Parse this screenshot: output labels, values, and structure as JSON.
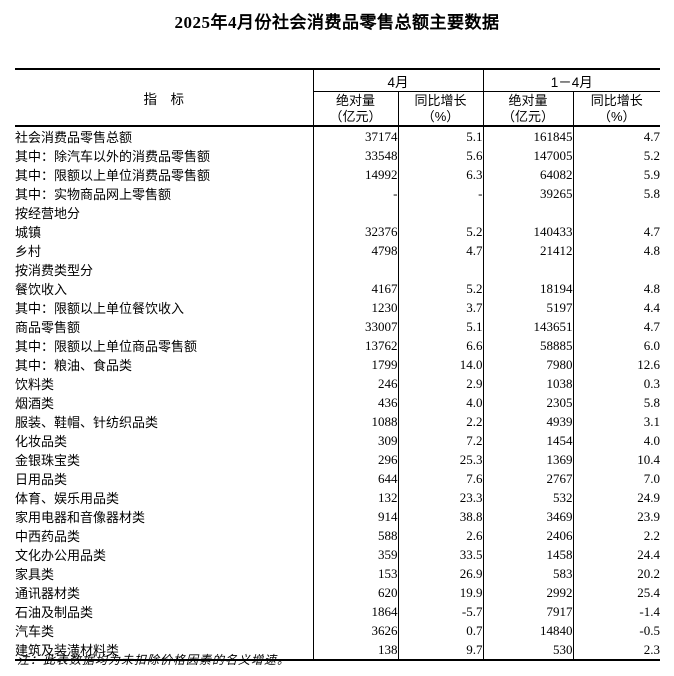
{
  "title": "2025年4月份社会消费品零售总额主要数据",
  "table": {
    "header": {
      "indicator": "指　标",
      "group_april": "4月",
      "group_jan_apr": "1－4月",
      "absolute_label": "绝对量",
      "absolute_unit": "（亿元）",
      "growth_label": "同比增长",
      "growth_unit": "（%）"
    },
    "rows": [
      {
        "indicator": "社会消费品零售总额",
        "indent": 0,
        "apr_abs": "37174",
        "apr_yoy": "5.1",
        "cum_abs": "161845",
        "cum_yoy": "4.7"
      },
      {
        "indicator": "其中：除汽车以外的消费品零售额",
        "indent": 1,
        "apr_abs": "33548",
        "apr_yoy": "5.6",
        "cum_abs": "147005",
        "cum_yoy": "5.2"
      },
      {
        "indicator": "其中：限额以上单位消费品零售额",
        "indent": 1,
        "apr_abs": "14992",
        "apr_yoy": "6.3",
        "cum_abs": "64082",
        "cum_yoy": "5.9"
      },
      {
        "indicator": "其中：实物商品网上零售额",
        "indent": 1,
        "apr_abs": "-",
        "apr_yoy": "-",
        "cum_abs": "39265",
        "cum_yoy": "5.8"
      },
      {
        "indicator": "按经营地分",
        "indent": 0,
        "apr_abs": "",
        "apr_yoy": "",
        "cum_abs": "",
        "cum_yoy": ""
      },
      {
        "indicator": "城镇",
        "indent": 1,
        "apr_abs": "32376",
        "apr_yoy": "5.2",
        "cum_abs": "140433",
        "cum_yoy": "4.7"
      },
      {
        "indicator": "乡村",
        "indent": 1,
        "apr_abs": "4798",
        "apr_yoy": "4.7",
        "cum_abs": "21412",
        "cum_yoy": "4.8"
      },
      {
        "indicator": "按消费类型分",
        "indent": 0,
        "apr_abs": "",
        "apr_yoy": "",
        "cum_abs": "",
        "cum_yoy": ""
      },
      {
        "indicator": "餐饮收入",
        "indent": 1,
        "apr_abs": "4167",
        "apr_yoy": "5.2",
        "cum_abs": "18194",
        "cum_yoy": "4.8"
      },
      {
        "indicator": "其中：限额以上单位餐饮收入",
        "indent": 2,
        "apr_abs": "1230",
        "apr_yoy": "3.7",
        "cum_abs": "5197",
        "cum_yoy": "4.4"
      },
      {
        "indicator": "商品零售额",
        "indent": 1,
        "apr_abs": "33007",
        "apr_yoy": "5.1",
        "cum_abs": "143651",
        "cum_yoy": "4.7"
      },
      {
        "indicator": "其中：限额以上单位商品零售额",
        "indent": 2,
        "apr_abs": "13762",
        "apr_yoy": "6.6",
        "cum_abs": "58885",
        "cum_yoy": "6.0"
      },
      {
        "indicator": "其中：粮油、食品类",
        "indent": 3,
        "apr_abs": "1799",
        "apr_yoy": "14.0",
        "cum_abs": "7980",
        "cum_yoy": "12.6"
      },
      {
        "indicator": "饮料类",
        "indent": 4,
        "apr_abs": "246",
        "apr_yoy": "2.9",
        "cum_abs": "1038",
        "cum_yoy": "0.3"
      },
      {
        "indicator": "烟酒类",
        "indent": 4,
        "apr_abs": "436",
        "apr_yoy": "4.0",
        "cum_abs": "2305",
        "cum_yoy": "5.8"
      },
      {
        "indicator": "服装、鞋帽、针纺织品类",
        "indent": 4,
        "apr_abs": "1088",
        "apr_yoy": "2.2",
        "cum_abs": "4939",
        "cum_yoy": "3.1"
      },
      {
        "indicator": "化妆品类",
        "indent": 4,
        "apr_abs": "309",
        "apr_yoy": "7.2",
        "cum_abs": "1454",
        "cum_yoy": "4.0"
      },
      {
        "indicator": "金银珠宝类",
        "indent": 4,
        "apr_abs": "296",
        "apr_yoy": "25.3",
        "cum_abs": "1369",
        "cum_yoy": "10.4"
      },
      {
        "indicator": "日用品类",
        "indent": 4,
        "apr_abs": "644",
        "apr_yoy": "7.6",
        "cum_abs": "2767",
        "cum_yoy": "7.0"
      },
      {
        "indicator": "体育、娱乐用品类",
        "indent": 4,
        "apr_abs": "132",
        "apr_yoy": "23.3",
        "cum_abs": "532",
        "cum_yoy": "24.9"
      },
      {
        "indicator": "家用电器和音像器材类",
        "indent": 4,
        "apr_abs": "914",
        "apr_yoy": "38.8",
        "cum_abs": "3469",
        "cum_yoy": "23.9"
      },
      {
        "indicator": "中西药品类",
        "indent": 4,
        "apr_abs": "588",
        "apr_yoy": "2.6",
        "cum_abs": "2406",
        "cum_yoy": "2.2"
      },
      {
        "indicator": "文化办公用品类",
        "indent": 4,
        "apr_abs": "359",
        "apr_yoy": "33.5",
        "cum_abs": "1458",
        "cum_yoy": "24.4"
      },
      {
        "indicator": "家具类",
        "indent": 4,
        "apr_abs": "153",
        "apr_yoy": "26.9",
        "cum_abs": "583",
        "cum_yoy": "20.2"
      },
      {
        "indicator": "通讯器材类",
        "indent": 4,
        "apr_abs": "620",
        "apr_yoy": "19.9",
        "cum_abs": "2992",
        "cum_yoy": "25.4"
      },
      {
        "indicator": "石油及制品类",
        "indent": 4,
        "apr_abs": "1864",
        "apr_yoy": "-5.7",
        "cum_abs": "7917",
        "cum_yoy": "-1.4"
      },
      {
        "indicator": "汽车类",
        "indent": 4,
        "apr_abs": "3626",
        "apr_yoy": "0.7",
        "cum_abs": "14840",
        "cum_yoy": "-0.5"
      },
      {
        "indicator": "建筑及装潢材料类",
        "indent": 4,
        "apr_abs": "138",
        "apr_yoy": "9.7",
        "cum_abs": "530",
        "cum_yoy": "2.3"
      }
    ]
  },
  "note": "注：此表数据均为未扣除价格因素的名义增速。"
}
